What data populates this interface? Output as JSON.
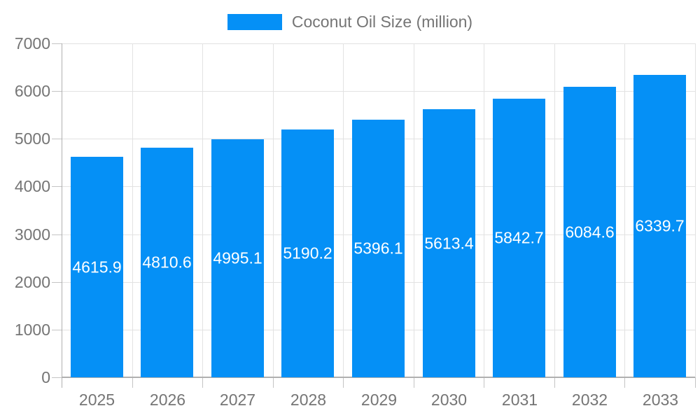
{
  "chart_data": {
    "type": "bar",
    "categories": [
      "2025",
      "2026",
      "2027",
      "2028",
      "2029",
      "2030",
      "2031",
      "2032",
      "2033"
    ],
    "values": [
      4615.9,
      4810.6,
      4995.1,
      5190.2,
      5396.1,
      5613.4,
      5842.7,
      6084.6,
      6339.7
    ],
    "series_name": "Coconut Oil Size (million)",
    "title": "",
    "xlabel": "",
    "ylabel": "",
    "ylim": [
      0,
      7000
    ],
    "ytick_interval": 1000,
    "yticks": [
      0,
      1000,
      2000,
      3000,
      4000,
      5000,
      6000,
      7000
    ],
    "grid": true,
    "legend_position": "top-center",
    "value_labels": "white, centered inside bars",
    "colors": {
      "bar": "#0590f6",
      "bar_value_label": "#ffffff",
      "axis_text": "#757575",
      "gridline": "#e2e2e2",
      "axis_line": "#b0b0b0",
      "tick": "#c4c4c4",
      "background": "#ffffff"
    }
  },
  "legend": {
    "label": "Coconut Oil Size (million)",
    "swatch_color": "#0590f6"
  }
}
